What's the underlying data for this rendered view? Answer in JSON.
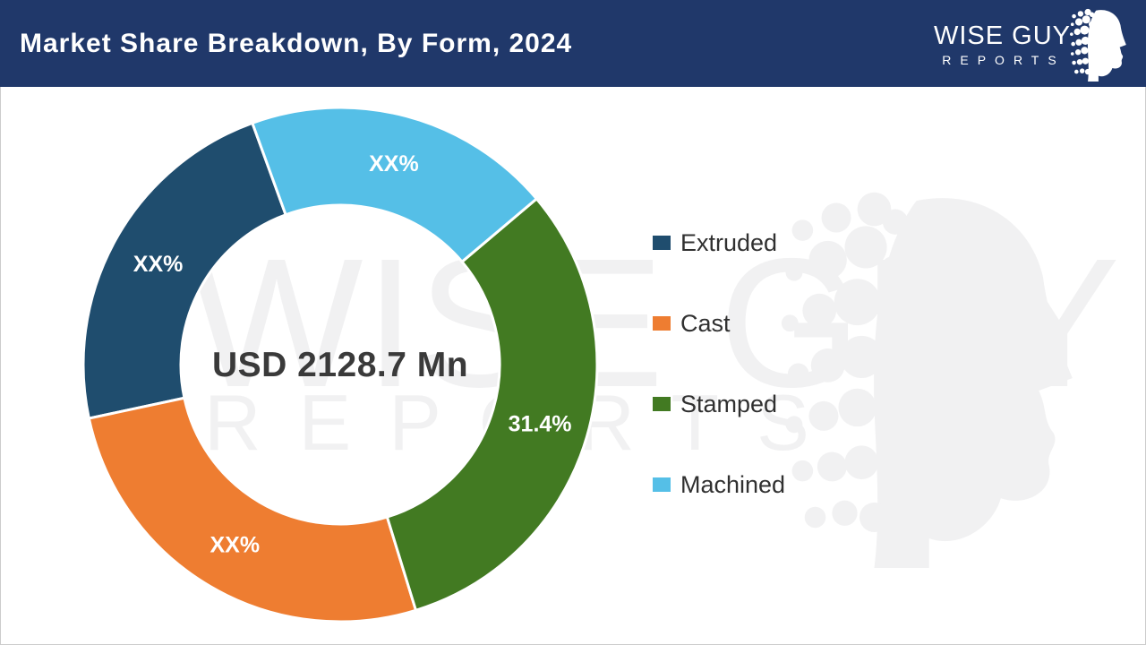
{
  "header": {
    "title": "Market Share Breakdown, By Form, 2024",
    "logo": {
      "name": "WISE GUY",
      "tagline": "REPORTS"
    }
  },
  "watermark": {
    "line1": "WISE GUY",
    "line2": "REPORTS"
  },
  "chart": {
    "center_value": "USD 2128.7 Mn"
  },
  "chart_data": {
    "type": "pie",
    "subtype": "donut",
    "title": "Market Share Breakdown, By Form, 2024",
    "center_label": "USD 2128.7 Mn",
    "categories": [
      "Extruded",
      "Cast",
      "Stamped",
      "Machined"
    ],
    "values": [
      22.8,
      26.4,
      31.4,
      19.4
    ],
    "value_labels": [
      "XX%",
      "XX%",
      "31.4%",
      "XX%"
    ],
    "colors": [
      "#1F4D6E",
      "#EE7D31",
      "#427A22",
      "#55BFE7"
    ],
    "start_angle_deg": 110,
    "direction": "counterclockwise",
    "inner_radius_ratio": 0.62,
    "legend_position": "right"
  },
  "legend": {
    "items": [
      {
        "label": "Extruded",
        "color": "#1F4D6E"
      },
      {
        "label": "Cast",
        "color": "#EE7D31"
      },
      {
        "label": "Stamped",
        "color": "#427A22"
      },
      {
        "label": "Machined",
        "color": "#55BFE7"
      }
    ]
  },
  "colors": {
    "header_bg": "#20386A",
    "center_text": "#3A3A3A",
    "legend_text": "#303030",
    "slice_label": "#FFFFFF",
    "watermark": "#F1F1F2",
    "border": "#CCCCCC"
  }
}
